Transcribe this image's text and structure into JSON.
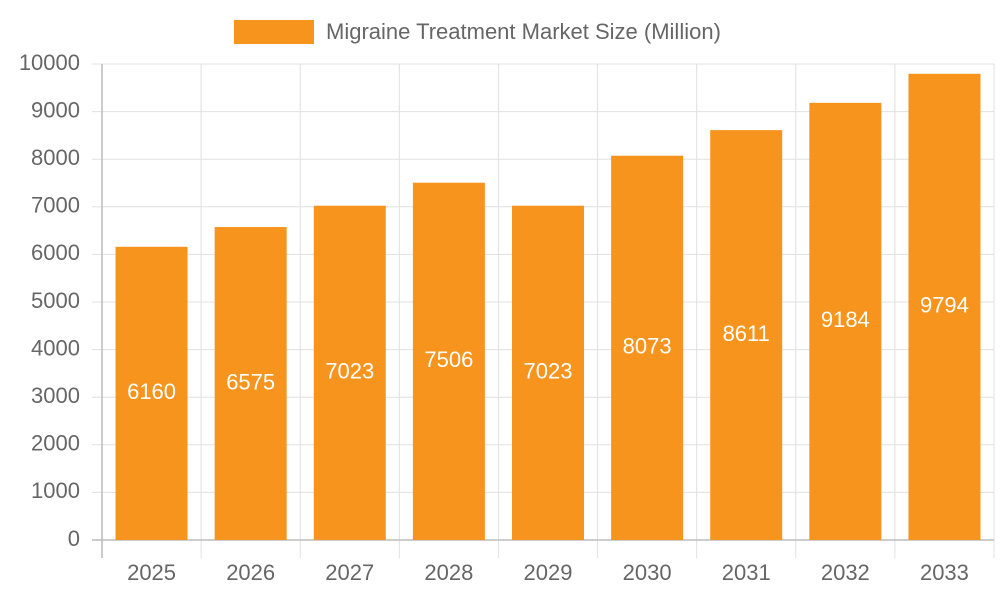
{
  "chart_data": {
    "type": "bar",
    "categories": [
      "2025",
      "2026",
      "2027",
      "2028",
      "2029",
      "2030",
      "2031",
      "2032",
      "2033"
    ],
    "series": [
      {
        "name": "Migraine Treatment Market Size (Million)",
        "color": "#f7941e",
        "values": [
          6160,
          6575,
          7023,
          7506,
          7023,
          8073,
          8611,
          9184,
          9794
        ]
      }
    ],
    "ylim": [
      0,
      10000
    ],
    "yticks": [
      0,
      1000,
      2000,
      3000,
      4000,
      5000,
      6000,
      7000,
      8000,
      9000,
      10000
    ],
    "grid": true,
    "legend": "top"
  }
}
